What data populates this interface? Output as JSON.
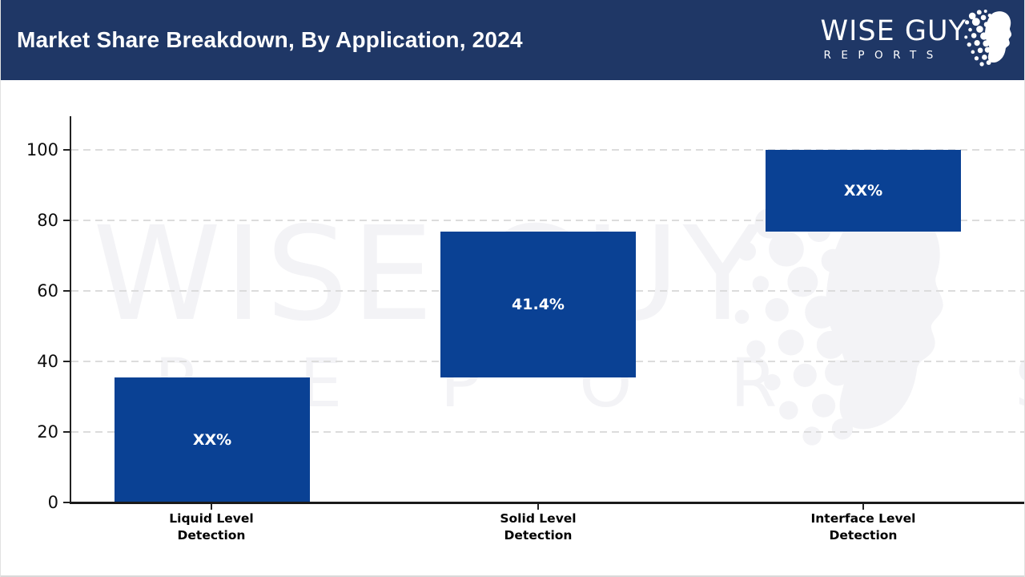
{
  "header": {
    "title": "Market Share Breakdown, By Application, 2024",
    "bg_color": "#1f3766",
    "logo": {
      "line1": "WISE GUY",
      "line2": "REPORTS"
    }
  },
  "watermark": {
    "line1": "WISE GUY",
    "line2": "R E P O R T S"
  },
  "chart_data": {
    "type": "bar",
    "subtype": "waterfall",
    "title": "Market Share Breakdown, By Application, 2024",
    "categories": [
      {
        "line1": "Liquid Level",
        "line2": "Detection"
      },
      {
        "line1": "Solid Level",
        "line2": "Detection"
      },
      {
        "line1": "Interface Level",
        "line2": "Detection"
      }
    ],
    "segments": [
      {
        "category": "Liquid Level Detection",
        "label": "XX%",
        "start": 0,
        "end": 35.4,
        "value": 35.4
      },
      {
        "category": "Solid Level Detection",
        "label": "41.4%",
        "start": 35.4,
        "end": 76.8,
        "value": 41.4
      },
      {
        "category": "Interface Level Detection",
        "label": "XX%",
        "start": 76.8,
        "end": 100,
        "value": 23.2
      }
    ],
    "y_ticks": [
      "100",
      "80",
      "60",
      "40",
      "20",
      "0"
    ],
    "ylim": [
      0,
      110
    ],
    "xlabel": "",
    "ylabel": "",
    "grid": "horizontal-dashed",
    "legend": "none",
    "bar_color": "#0a4194",
    "grid_color": "#dcdcdc"
  }
}
